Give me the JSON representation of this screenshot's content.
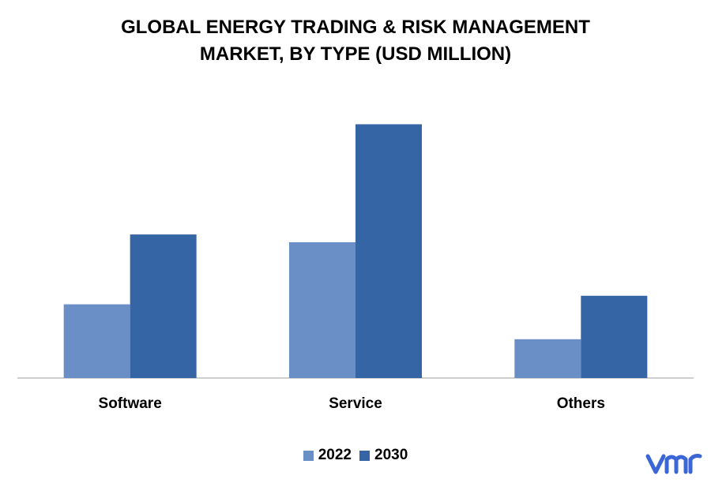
{
  "colors": {
    "series_2022": "#6a8fc7",
    "series_2030": "#3565a5",
    "axis": "#bfbfbf",
    "logo": "#3b66d6"
  },
  "chart_data": {
    "type": "bar",
    "title_lines": [
      "GLOBAL ENERGY TRADING & RISK MANAGEMENT",
      "MARKET, BY TYPE (USD MILLION)"
    ],
    "categories": [
      "Software",
      "Service",
      "Others"
    ],
    "series": [
      {
        "name": "2022",
        "values": [
          95,
          175,
          50
        ]
      },
      {
        "name": "2030",
        "values": [
          185,
          327,
          106
        ]
      }
    ],
    "ylim": [
      0,
      360
    ],
    "legend_position": "bottom",
    "grid": false
  },
  "logo": {
    "text": "vmr",
    "icon": "vmr-logo-icon"
  }
}
